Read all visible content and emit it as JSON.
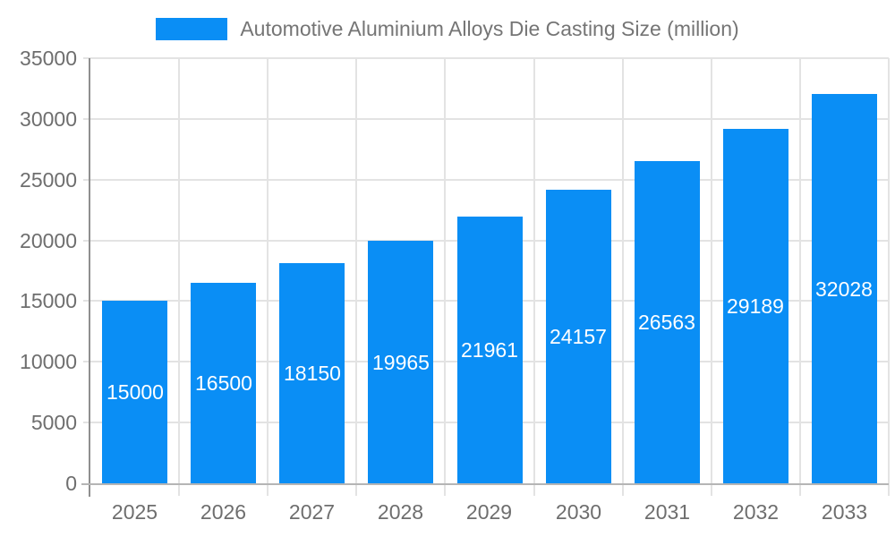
{
  "chart_data": {
    "type": "bar",
    "title": "Automotive Aluminium Alloys Die Casting Size (million)",
    "legend_position": "top",
    "categories": [
      "2025",
      "2026",
      "2027",
      "2028",
      "2029",
      "2030",
      "2031",
      "2032",
      "2033"
    ],
    "series": [
      {
        "name": "Automotive Aluminium Alloys Die Casting Size (million)",
        "values": [
          15000,
          16500,
          18150,
          19965,
          21961,
          24157,
          26563,
          29189,
          32028
        ]
      }
    ],
    "value_labels_visible": true,
    "value_label_position": "inside-middle",
    "xlabel": "",
    "ylabel": "",
    "ylim": [
      0,
      35000
    ],
    "yticks": [
      0,
      5000,
      10000,
      15000,
      20000,
      25000,
      30000,
      35000
    ],
    "grid": true,
    "colors": {
      "bar": "#0a8ef5",
      "bar_value_label": "#ffffff",
      "axis_y_line": "#8f8f8f",
      "axis_x_line": "#b5b5b5",
      "gridline": "#e3e3e3",
      "tick_label": "#6e6e6e",
      "legend_text": "#757575",
      "background": "#ffffff"
    }
  }
}
